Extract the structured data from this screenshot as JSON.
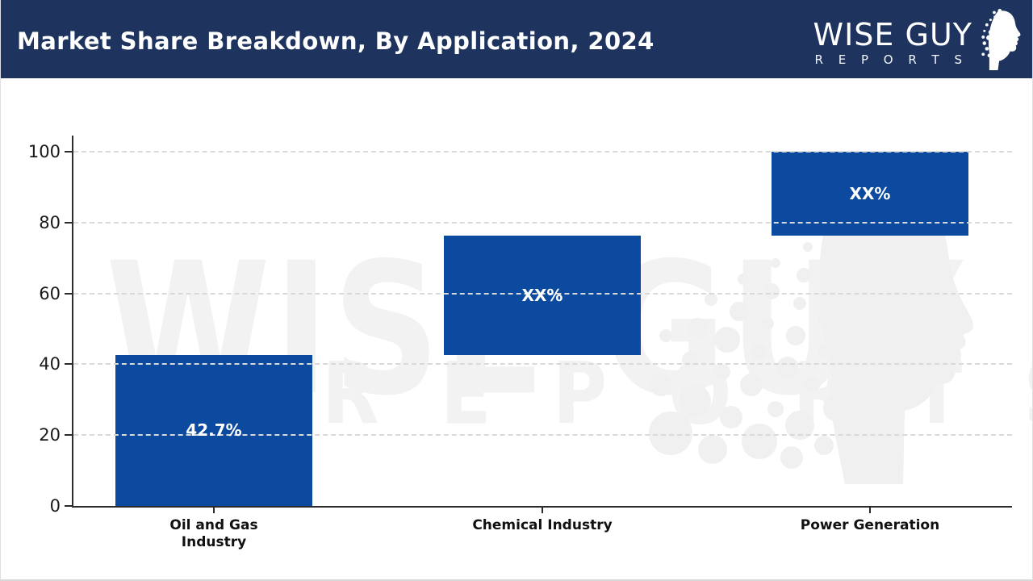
{
  "header": {
    "title": "Market Share Breakdown, By Application, 2024",
    "logo": {
      "line1": "WISE GUY",
      "line2": "R E P O R T S"
    }
  },
  "watermark": {
    "line1": "WISE GUY",
    "line2": "R E P O R T S"
  },
  "colors": {
    "header_bg": "#1E345F",
    "bar": "#0B4A9F",
    "bar_label": "#FFFFFF",
    "grid": "#D9D9D9",
    "axis": "#2B2B2B",
    "watermark": "#F2F2F2"
  },
  "chart_data": {
    "type": "bar",
    "variant": "waterfall-floating-segments",
    "title": "Market Share Breakdown, By Application, 2024",
    "categories": [
      "Oil and Gas\nIndustry",
      "Chemical Industry",
      "Power Generation"
    ],
    "bars": [
      {
        "category": "Oil and Gas Industry",
        "start": 0,
        "end": 42.7,
        "label": "42.7%"
      },
      {
        "category": "Chemical Industry",
        "start": 42.7,
        "end": 76.4,
        "label": "XX%"
      },
      {
        "category": "Power Generation",
        "start": 76.4,
        "end": 100,
        "label": "XX%"
      }
    ],
    "xlabel": "",
    "ylabel": "",
    "ylim": [
      0,
      100
    ],
    "yticks": [
      0,
      20,
      40,
      60,
      80,
      100
    ],
    "grid": {
      "axis": "y",
      "style": "dashed",
      "drawn_over_bars": true
    },
    "legend": null
  }
}
